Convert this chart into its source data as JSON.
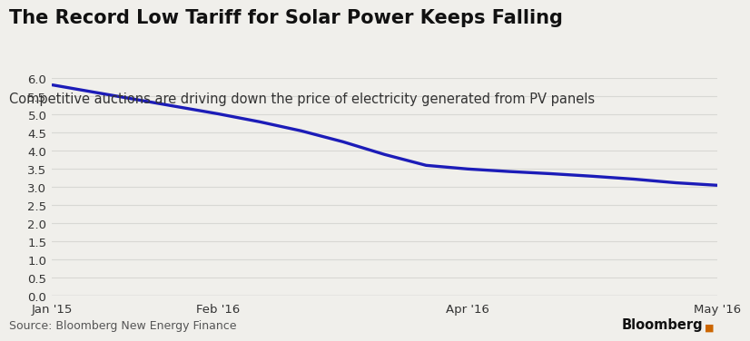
{
  "title": "The Record Low Tariff for Solar Power Keeps Falling",
  "subtitle": "Competitive auctions are driving down the price of electricity generated from PV panels",
  "source_text": "Source: Bloomberg New Energy Finance",
  "bloomberg_text": "Bloomberg",
  "line_color": "#1c1cb8",
  "line_width": 2.4,
  "background_color": "#f0efeb",
  "x_values": [
    0,
    1,
    2,
    3,
    4,
    5,
    6,
    7,
    8,
    9,
    10,
    11,
    12,
    13,
    14,
    15,
    16
  ],
  "y_values": [
    5.82,
    5.62,
    5.42,
    5.22,
    5.02,
    4.8,
    4.55,
    4.25,
    3.9,
    3.6,
    3.5,
    3.43,
    3.37,
    3.3,
    3.22,
    3.12,
    3.05
  ],
  "x_tick_positions": [
    0,
    4,
    10,
    16
  ],
  "x_tick_labels": [
    "Jan '15",
    "Feb '16",
    "Apr '16",
    "May '16"
  ],
  "y_min": 0.0,
  "y_max": 6.0,
  "y_tick_step": 0.5,
  "title_fontsize": 15,
  "subtitle_fontsize": 10.5,
  "tick_fontsize": 9.5,
  "source_fontsize": 9.0,
  "grid_color": "#d8d8d4",
  "bottom_line_color": "#aaaaaa"
}
